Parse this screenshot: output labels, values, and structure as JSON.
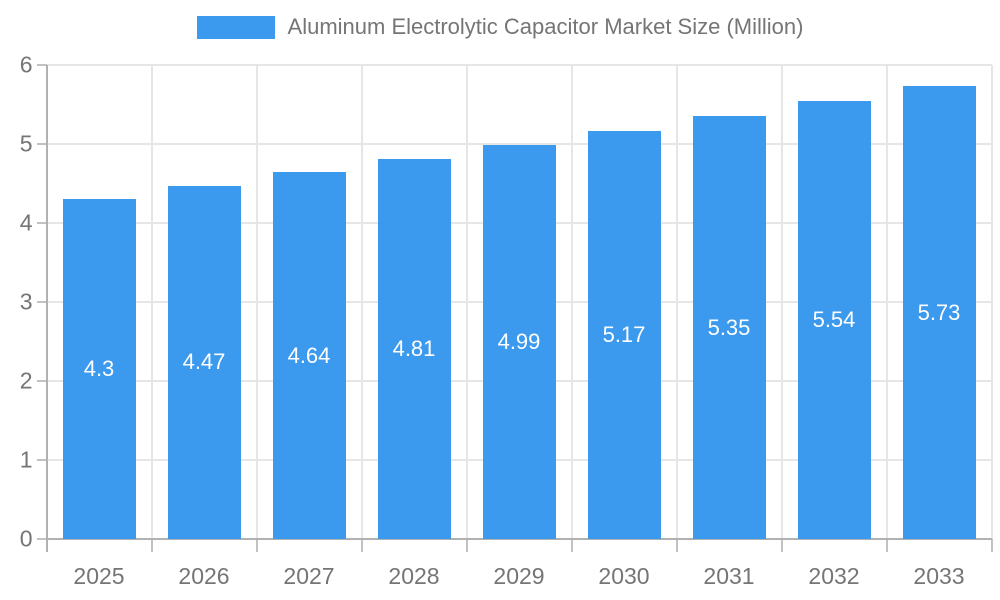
{
  "chart_data": {
    "type": "bar",
    "title": "Aluminum Electrolytic Capacitor Market Size (Million)",
    "categories": [
      "2025",
      "2026",
      "2027",
      "2028",
      "2029",
      "2030",
      "2031",
      "2032",
      "2033"
    ],
    "values": [
      4.3,
      4.47,
      4.64,
      4.81,
      4.99,
      5.17,
      5.35,
      5.54,
      5.73
    ],
    "value_labels": [
      "4.3",
      "4.47",
      "4.64",
      "4.81",
      "4.99",
      "5.17",
      "5.35",
      "5.54",
      "5.73"
    ],
    "ytick_labels": [
      "0",
      "1",
      "2",
      "3",
      "4",
      "5",
      "6"
    ],
    "yticks": [
      0,
      1,
      2,
      3,
      4,
      5,
      6
    ],
    "ylim": [
      0,
      6
    ],
    "xlabel": "",
    "ylabel": "",
    "grid": true,
    "legend_position": "top",
    "colors": {
      "bar": "#3b99ee",
      "grid_line": "#e6e6e6",
      "axis_line": "#b1b1b1",
      "tick": "#c2c2c2",
      "axis_label": "#757575",
      "value_label": "#ffffff",
      "background": "#ffffff"
    }
  }
}
